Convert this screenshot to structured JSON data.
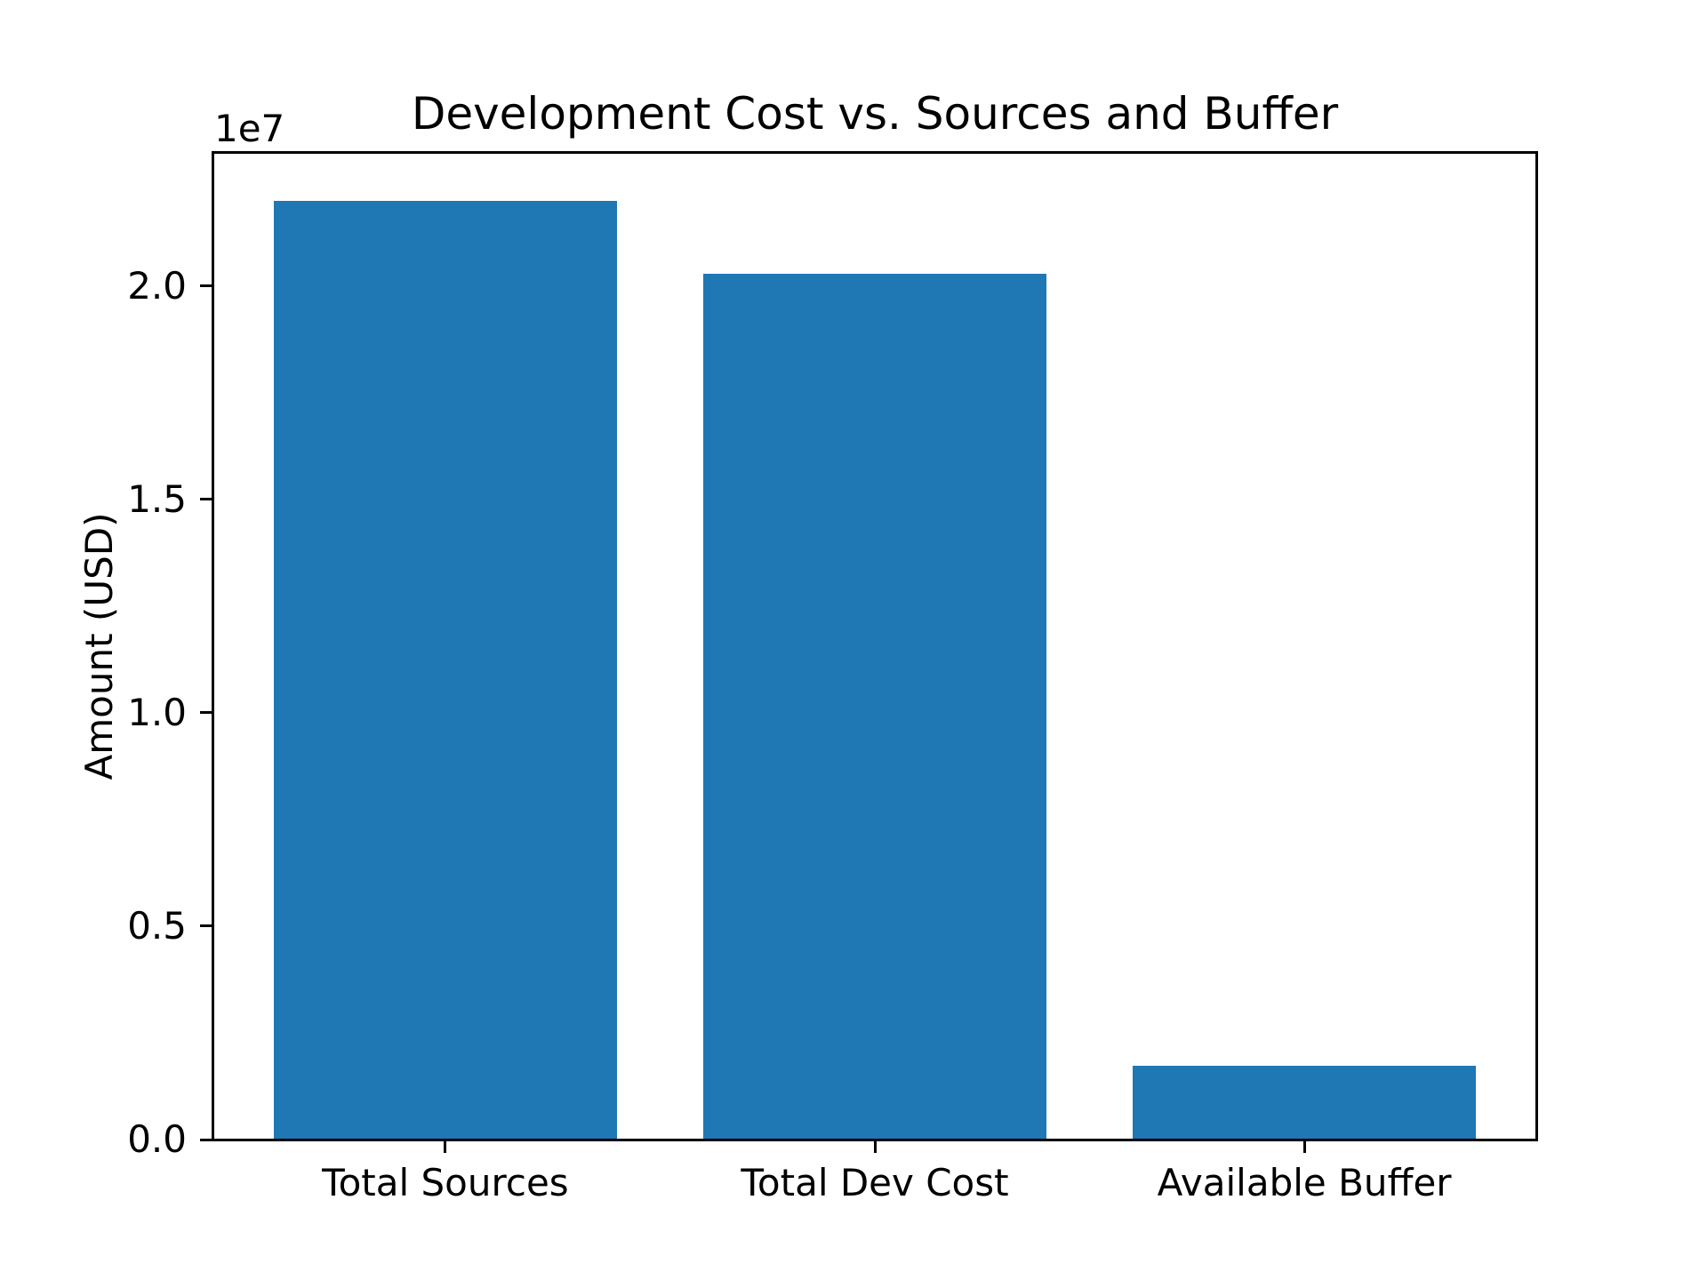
{
  "chart_data": {
    "type": "bar",
    "title": "Development Cost vs. Sources and Buffer",
    "categories": [
      "Total Sources",
      "Total Dev Cost",
      "Available Buffer"
    ],
    "values": [
      22000000,
      20280000,
      1720000
    ],
    "xlabel": "",
    "ylabel": "Amount (USD)",
    "ylim": [
      0,
      23100000
    ],
    "yticks": [
      0,
      5000000,
      10000000,
      15000000,
      20000000
    ],
    "ytick_labels": [
      "0.0",
      "0.5",
      "1.0",
      "1.5",
      "2.0"
    ],
    "y_offset_text": "1e7",
    "bar_color": "#1f77b4",
    "bar_width_fraction": 0.8,
    "grid": false,
    "legend": null
  }
}
